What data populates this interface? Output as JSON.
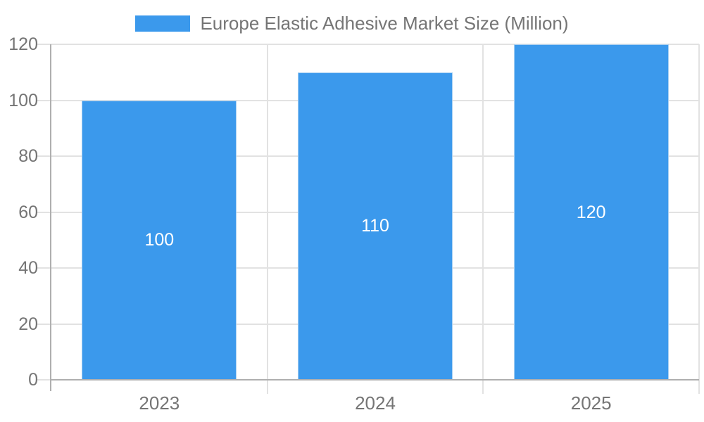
{
  "legend": {
    "label": "Europe Elastic Adhesive Market Size (Million)"
  },
  "chart_data": {
    "type": "bar",
    "title": "Europe Elastic Adhesive Market Size (Million)",
    "categories": [
      "2023",
      "2024",
      "2025"
    ],
    "series": [
      {
        "name": "Europe Elastic Adhesive Market Size (Million)",
        "values": [
          100,
          110,
          120
        ],
        "data_labels": [
          "100",
          "110",
          "120"
        ]
      }
    ],
    "xlabel": "",
    "ylabel": "",
    "ylim": [
      0,
      120
    ],
    "yticks": [
      0,
      20,
      40,
      60,
      80,
      100,
      120
    ],
    "grid": true,
    "legend_position": "top-center",
    "colors": {
      "bar": "#3B99EC",
      "bar_edge": "#A9D0F2",
      "grid_line": "#E2E2E2",
      "axis_line": "#AFAFAF",
      "tick_text": "#757575",
      "data_label_text": "#FFFFFF",
      "background": "#FFFFFF"
    }
  }
}
